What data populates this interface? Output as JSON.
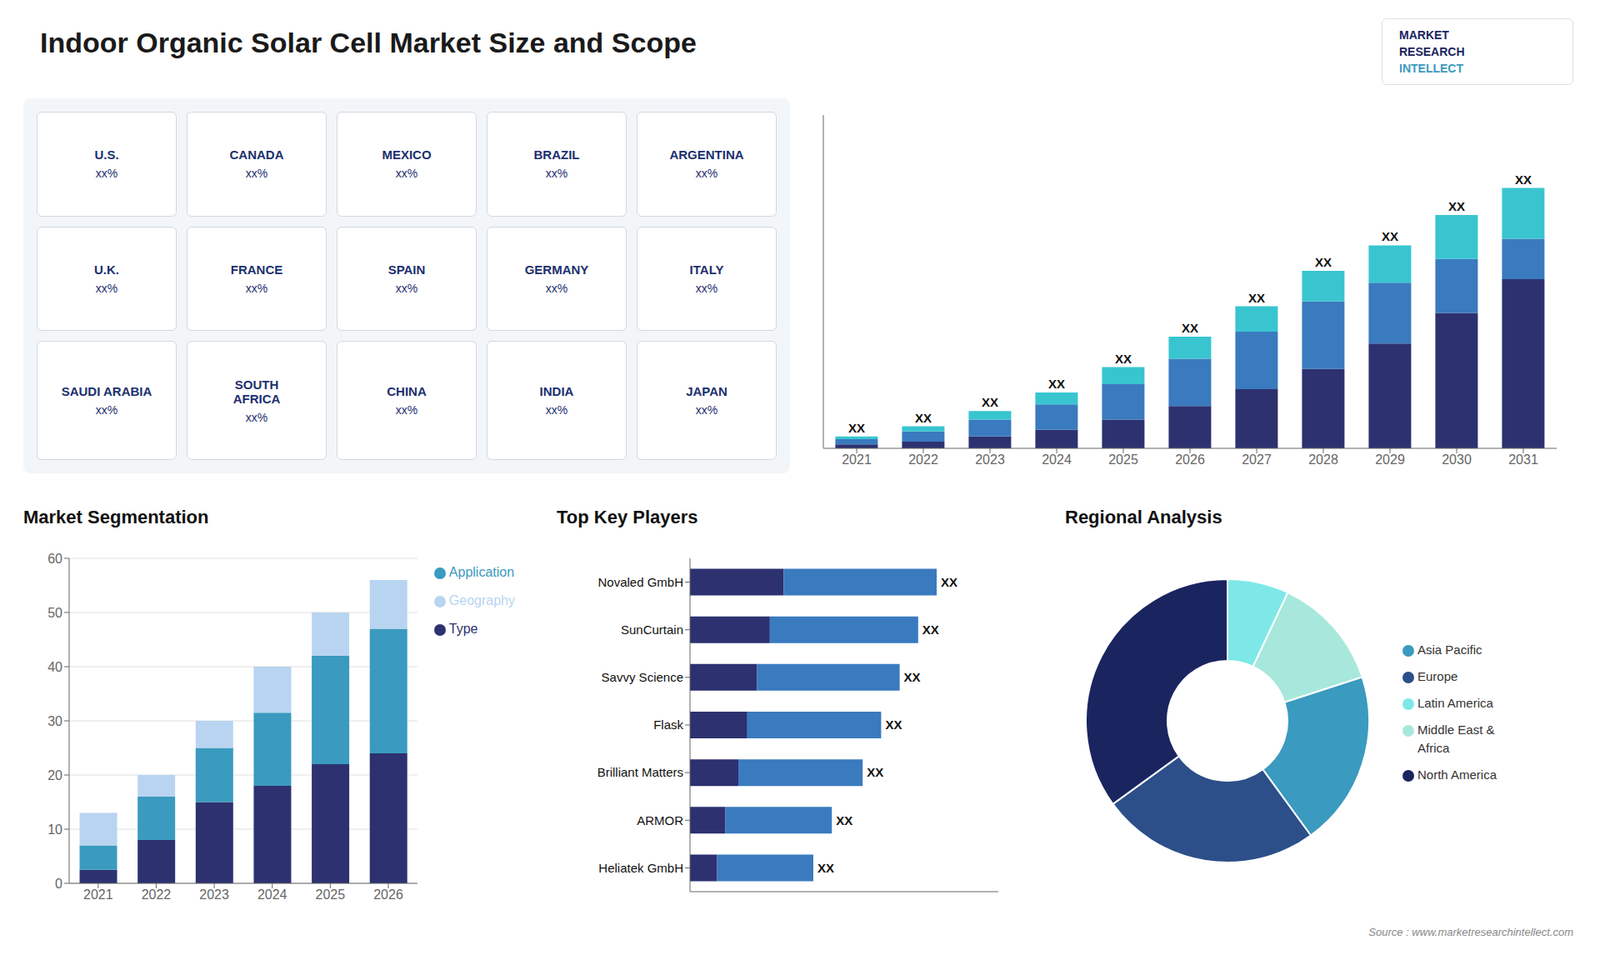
{
  "title": "Indoor Organic Solar Cell Market Size and Scope",
  "annotations": [
    "MARKET",
    "RESEARCH",
    "INTELLECT",
    "Source : www.marketresearchintellect.com"
  ],
  "chart_data": [
    {
      "type": "map",
      "annotations": [
        "U.S.",
        "xx%",
        "CANADA",
        "xx%",
        "MEXICO",
        "xx%",
        "BRAZIL",
        "xx%",
        "ARGENTINA",
        "xx%",
        "U.K.",
        "xx%",
        "FRANCE",
        "xx%",
        "SPAIN",
        "xx%",
        "GERMANY",
        "xx%",
        "ITALY",
        "xx%",
        "SAUDI ARABIA",
        "xx%",
        "SOUTH\nAFRICA",
        "xx%",
        "CHINA",
        "xx%",
        "INDIA",
        "xx%",
        "JAPAN",
        "xx%"
      ]
    },
    {
      "type": "bar",
      "stacked": true,
      "categories": [
        "2021",
        "2022",
        "2023",
        "2024",
        "2025",
        "2026",
        "2027",
        "2028",
        "2029",
        "2030",
        "2031"
      ],
      "series": [
        {
          "color": "#2d3170",
          "values": [
            1.2,
            2.0,
            3.5,
            5.5,
            8.5,
            12.5,
            17.5,
            23.5,
            31.0,
            40.0,
            50.0
          ]
        },
        {
          "color": "#3a7abf",
          "values": [
            1.5,
            3.0,
            5.0,
            7.5,
            10.5,
            14.0,
            17.0,
            20.0,
            18.0,
            16.0,
            12.0
          ]
        },
        {
          "color": "#38c5d0",
          "values": [
            0.8,
            1.5,
            2.5,
            3.5,
            5.0,
            6.5,
            7.5,
            9.0,
            11.0,
            13.0,
            15.0
          ]
        }
      ],
      "value_labels": [
        "XX",
        "XX",
        "XX",
        "XX",
        "XX",
        "XX",
        "XX",
        "XX",
        "XX",
        "XX",
        "XX"
      ],
      "ylim": [
        0,
        98.56
      ],
      "tick_labels": "x",
      "grid": false
    },
    {
      "type": "bar",
      "stacked": true,
      "title": "Market Segmentation",
      "categories": [
        "2021",
        "2022",
        "2023",
        "2024",
        "2025",
        "2026"
      ],
      "series": [
        {
          "name": "Type",
          "color": "#2d3170",
          "values": [
            2.5,
            8.0,
            15.0,
            18.0,
            22.0,
            24.0
          ]
        },
        {
          "name": "Application",
          "color": "#3a9abf",
          "values": [
            4.5,
            8.0,
            10.0,
            13.5,
            20.0,
            23.0
          ]
        },
        {
          "name": "Geography",
          "color": "#b8d4f0",
          "values": [
            6.0,
            4.0,
            5.0,
            8.5,
            8.0,
            9.0
          ]
        }
      ],
      "ylim": [
        0,
        60
      ],
      "yticks": [
        0,
        10,
        20,
        30,
        40,
        50,
        60
      ],
      "grid": true,
      "legend": "right"
    },
    {
      "type": "bar",
      "stacked": true,
      "orientation": "horizontal",
      "title": "Top Key Players",
      "categories": [
        "Novaled GmbH",
        "SunCurtain",
        "Savvy Science",
        "Flask",
        "Brilliant Matters",
        "ARMOR",
        "Heliatek GmbH"
      ],
      "series": [
        {
          "color": "#2d3170",
          "values": [
            0.304,
            0.259,
            0.2176,
            0.186,
            0.1568,
            0.115,
            0.088
          ]
        },
        {
          "color": "#3a7abf",
          "values": [
            0.496,
            0.481,
            0.4624,
            0.434,
            0.4032,
            0.345,
            0.312
          ]
        }
      ],
      "value_labels": [
        "XX",
        "XX",
        "XX",
        "XX",
        "XX",
        "XX",
        "XX"
      ],
      "xlim": [
        0,
        1
      ],
      "tick_labels": "y",
      "grid": false
    },
    {
      "type": "pie",
      "title": "Regional Analysis",
      "categories": [
        "Latin America",
        "Middle East &\nAfrica",
        "Asia Pacific",
        "Europe",
        "North America"
      ],
      "values": [
        7,
        13,
        20,
        25,
        35
      ],
      "colors": [
        "#7ee8e8",
        "#a8e8dc",
        "#3a9abf",
        "#2c4f8a",
        "#1a2560"
      ],
      "legend": "right"
    }
  ]
}
